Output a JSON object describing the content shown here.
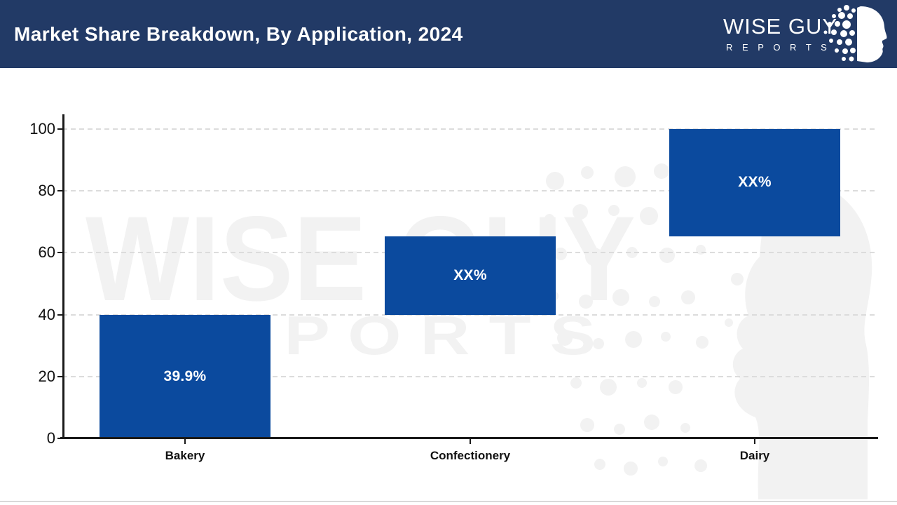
{
  "header": {
    "title": "Market Share Breakdown, By Application, 2024",
    "logo": {
      "brand": "WISE GUY",
      "sub": "R E P O R T S"
    }
  },
  "watermark": {
    "brand": "WISE GUY",
    "sub": "R E P O R T S"
  },
  "colors": {
    "header_bg": "#223A66",
    "bar": "#0B4A9E",
    "bar_label": "#FFFFFF",
    "grid": "#DCDCDC",
    "axis": "#1A1A1A",
    "tick_text": "#111111",
    "watermark": "#F2F2F2",
    "divider": "#D9D9D9"
  },
  "chart_data": {
    "type": "bar",
    "subtype": "floating-waterfall",
    "title": "Market Share Breakdown, By Application, 2024",
    "categories": [
      "Bakery",
      "Confectionery",
      "Dairy"
    ],
    "series": [
      {
        "category": "Bakery",
        "start": 0,
        "end": 39.9,
        "value_label": "39.9%"
      },
      {
        "category": "Confectionery",
        "start": 39.9,
        "end": 65.4,
        "value_label": "XX%"
      },
      {
        "category": "Dairy",
        "start": 65.4,
        "end": 100,
        "value_label": "XX%"
      }
    ],
    "yticks": [
      0,
      20,
      40,
      60,
      80,
      100
    ],
    "ylim": [
      0,
      105
    ],
    "xlabel": "",
    "ylabel": "",
    "grid": "horizontal-dashed",
    "legend": "none"
  }
}
